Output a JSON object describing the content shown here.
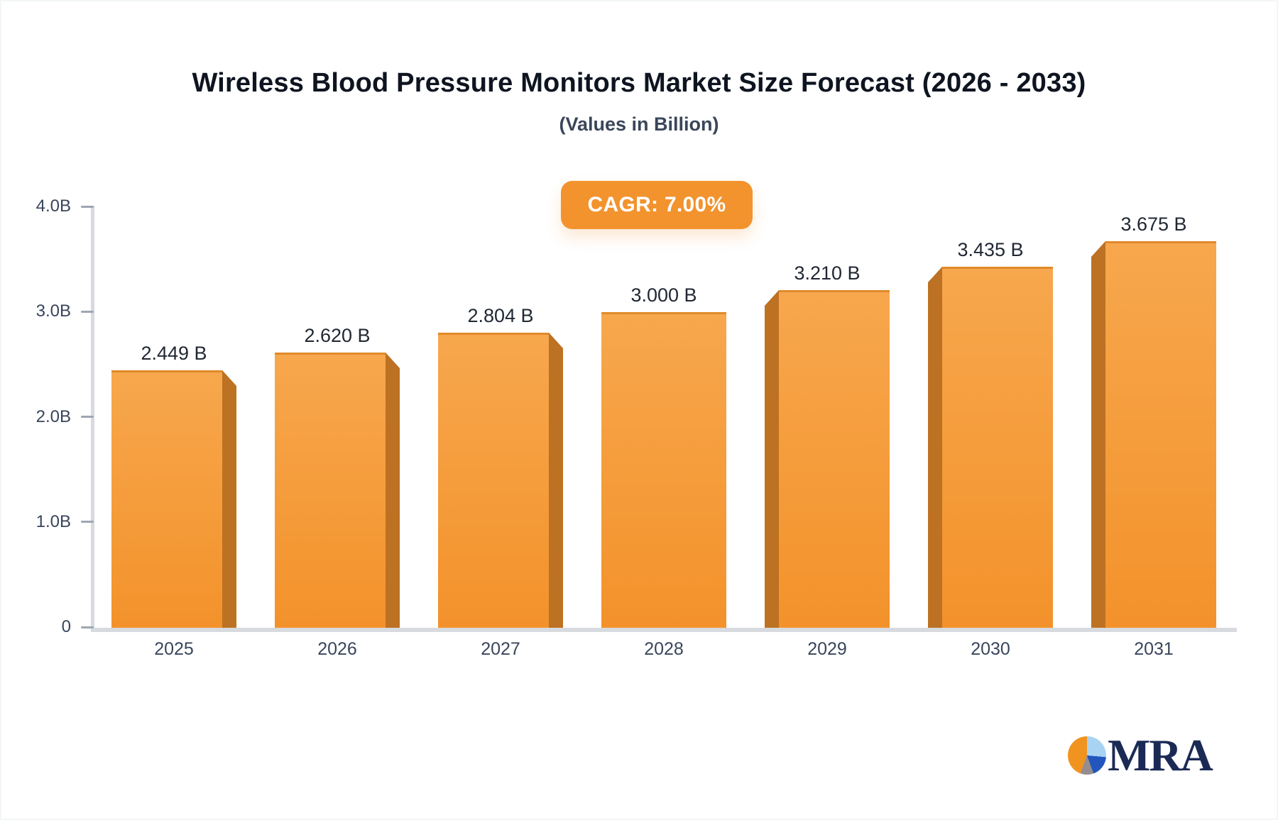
{
  "header": {
    "title": "Wireless Blood Pressure Monitors Market Size Forecast (2026 - 2033)",
    "subtitle": "(Values in Billion)"
  },
  "badge": {
    "label": "CAGR: 7.00%"
  },
  "logo": {
    "text": "MRA",
    "icon": "pie-chart-icon"
  },
  "colors": {
    "title": "#0e1420",
    "subtitle": "#3a4659",
    "badge_bg": "#f2932e",
    "bar_top": "#f7a74d",
    "bar_bottom": "#f3922b",
    "bar_side_col": "#bd7122",
    "bar_top_edge": "#e18a2b",
    "axis_line": "#d7dadf",
    "tick": "#9ea6b2",
    "axis_label": "#39455c",
    "value_label": "#212833",
    "logo_navy": "#1b2a55",
    "logo_orange": "#f0941f",
    "logo_lightblue": "#a9d3f2",
    "logo_blue": "#2256bd",
    "logo_gray": "#948d92"
  },
  "chart_data": {
    "type": "bar",
    "title": "Wireless Blood Pressure Monitors Market Size Forecast (2026 - 2033)",
    "subtitle": "(Values in Billion)",
    "annotation": "CAGR: 7.00%",
    "categories": [
      "2025",
      "2026",
      "2027",
      "2028",
      "2029",
      "2030",
      "2031"
    ],
    "values": [
      2.449,
      2.62,
      2.804,
      3.0,
      3.21,
      3.435,
      3.675
    ],
    "value_labels": [
      "2.449 B",
      "2.620 B",
      "2.804 B",
      "3.000 B",
      "3.210 B",
      "3.435 B",
      "3.675 B"
    ],
    "xlabel": "",
    "ylabel": "",
    "ylim": [
      0,
      4.0
    ],
    "yticks": [
      {
        "value": 0,
        "label": "0"
      },
      {
        "value": 1,
        "label": "1.0B"
      },
      {
        "value": 2,
        "label": "2.0B"
      },
      {
        "value": 3,
        "label": "3.0B"
      },
      {
        "value": 4,
        "label": "4.0B"
      }
    ],
    "grid": false,
    "legend": "none",
    "bar_style": "3d-beveled"
  }
}
